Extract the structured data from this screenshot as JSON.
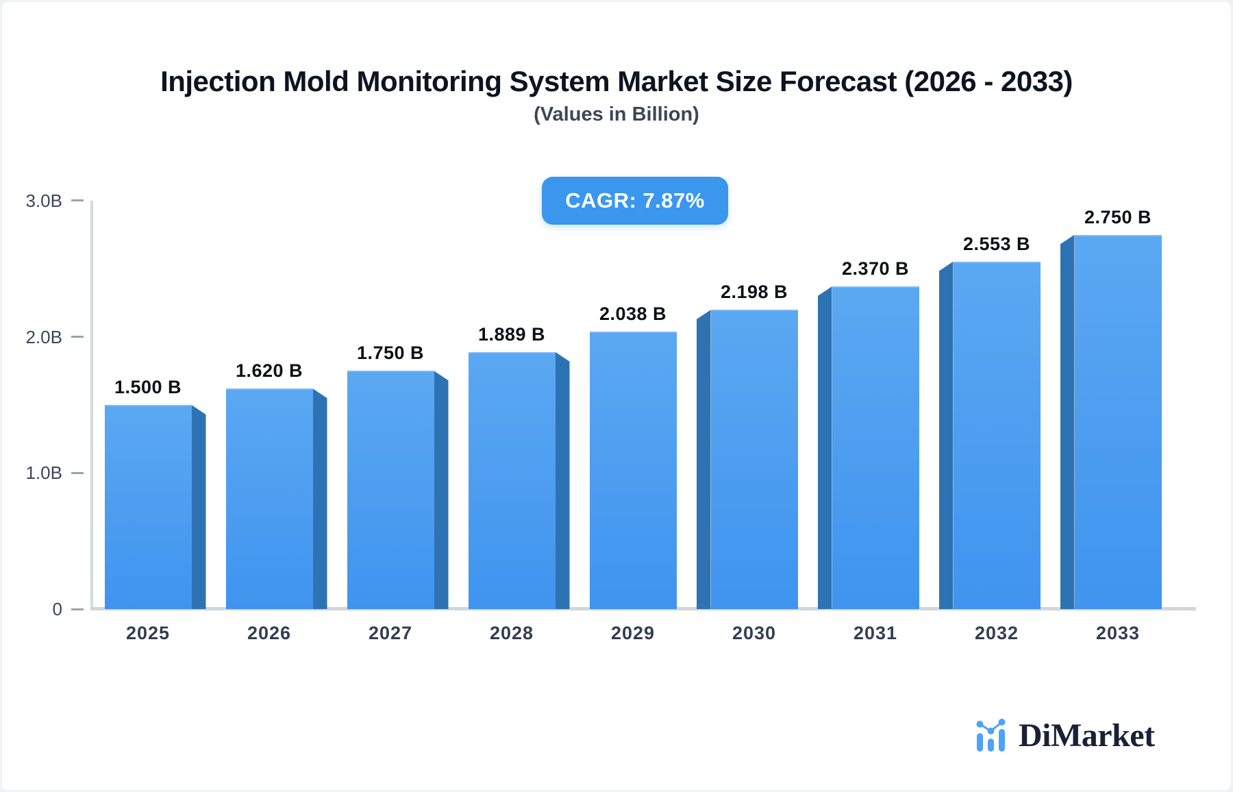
{
  "header": {
    "title": "Injection Mold Monitoring System Market Size Forecast (2026 - 2033)",
    "subtitle": "(Values in Billion)",
    "cagr_label": "CAGR: 7.87%"
  },
  "chart_data": {
    "type": "bar",
    "title": "Injection Mold Monitoring System Market Size Forecast (2026 - 2033)",
    "subtitle": "(Values in Billion)",
    "categories": [
      "2025",
      "2026",
      "2027",
      "2028",
      "2029",
      "2030",
      "2031",
      "2032",
      "2033"
    ],
    "values": [
      1.5,
      1.62,
      1.75,
      1.889,
      2.038,
      2.198,
      2.37,
      2.553,
      2.75
    ],
    "value_labels": [
      "1.500 B",
      "1.620 B",
      "1.750 B",
      "1.889 B",
      "2.038 B",
      "2.198 B",
      "2.370 B",
      "2.553 B",
      "2.750 B"
    ],
    "xlabel": "",
    "ylabel": "",
    "ylim": [
      0,
      3
    ],
    "yticks": [
      {
        "label": "0",
        "value": 0
      },
      {
        "label": "1.0B",
        "value": 1
      },
      {
        "label": "2.0B",
        "value": 2
      },
      {
        "label": "3.0B",
        "value": 3
      }
    ],
    "grid": false,
    "legend_position": "none",
    "annotations": [
      "CAGR: 7.87%"
    ],
    "bar_style": "3d-beveled, side faces toward chart center"
  },
  "colors": {
    "badge_bg": "#3b96ee",
    "bar_front_top": "#5ba8f2",
    "bar_front_bottom": "#3f94ef",
    "bar_side": "#2d73b4",
    "axis_line": "#d7dade",
    "baseline": "#d2d6da",
    "tick": "#9ba4ae",
    "title": "#0d1420",
    "subtitle": "#3d4656",
    "tick_label": "#3c4657",
    "year_label": "#333e52",
    "value_label": "#0d1117",
    "logo_blue": "#4da3f5",
    "logo_text": "#182135",
    "card_border": "#f0f3f6"
  },
  "logo": {
    "text": "DiMarket",
    "icon": "bar-line-chart-icon"
  }
}
